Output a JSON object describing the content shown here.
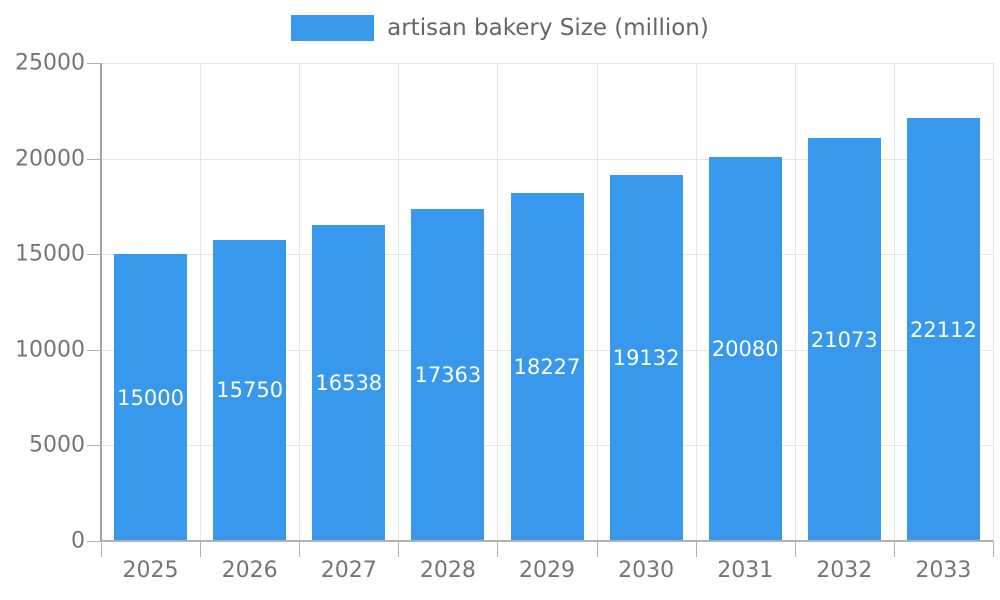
{
  "chart_data": {
    "type": "bar",
    "title": "artisan bakery Size (million)",
    "legend": {
      "label": "artisan bakery Size (million)",
      "position": "top"
    },
    "categories": [
      "2025",
      "2026",
      "2027",
      "2028",
      "2029",
      "2030",
      "2031",
      "2032",
      "2033"
    ],
    "values": [
      15000,
      15750,
      16538,
      17363,
      18227,
      19132,
      20080,
      21073,
      22112
    ],
    "xlabel": "",
    "ylabel": "",
    "ylim": [
      0,
      25000
    ],
    "yticks": [
      0,
      5000,
      10000,
      15000,
      20000,
      25000
    ],
    "grid": true,
    "data_labels": "inside-center",
    "colors": {
      "bar": "#3898ec",
      "bar_label": "#ffffff",
      "grid_line": "#e6e6e6",
      "axis_line": "#a3a3a3",
      "tick_text": "#757575",
      "legend_text": "#666666"
    }
  }
}
